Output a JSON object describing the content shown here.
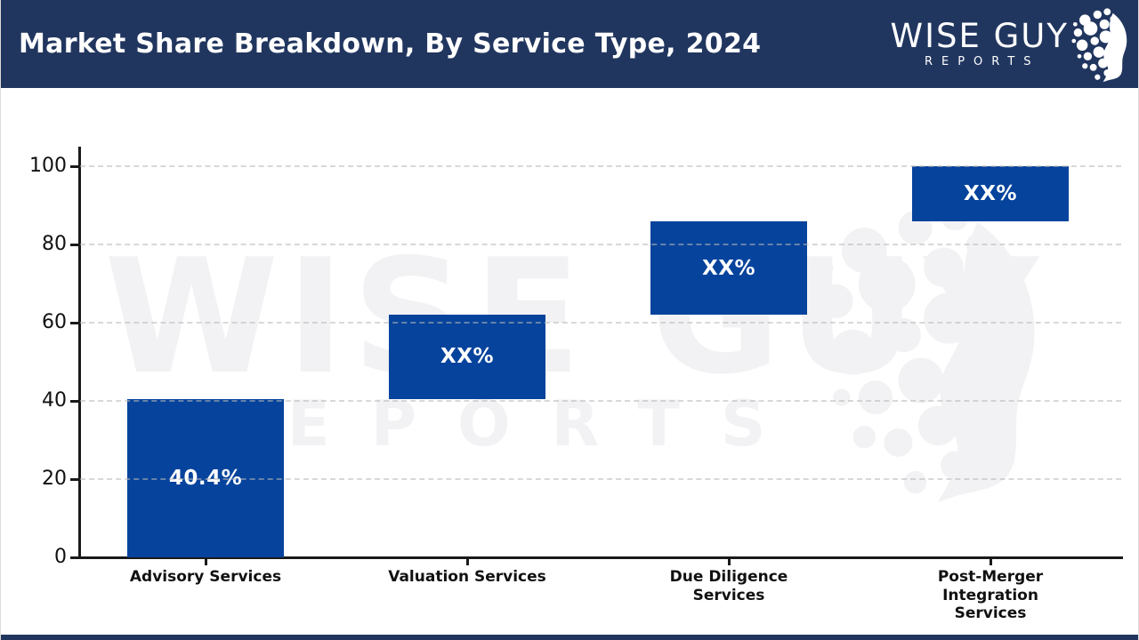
{
  "header": {
    "title": "Market Share Breakdown, By Service Type, 2024",
    "background_color": "#21365f",
    "logo": {
      "line1": "WISE GUY",
      "line2": "REPORTS"
    }
  },
  "watermark": {
    "line1": "WISE GUY",
    "line2": "REPORTS"
  },
  "colors": {
    "navy": "#21365f",
    "bar_blue": "#06439c",
    "watermark_gray": "#f2f2f4"
  },
  "chart_data": {
    "type": "bar",
    "subtype": "floating-waterfall",
    "title": "Market Share Breakdown, By Service Type, 2024",
    "categories": [
      "Advisory Services",
      "Valuation Services",
      "Due Diligence\nServices",
      "Post-Merger\nIntegration\nServices"
    ],
    "segments": [
      {
        "category": "Advisory Services",
        "start": 0,
        "end": 40.4,
        "label": "40.4%"
      },
      {
        "category": "Valuation Services",
        "start": 40.4,
        "end": 62.1,
        "label": "XX%"
      },
      {
        "category": "Due Diligence Services",
        "start": 62.1,
        "end": 85.8,
        "label": "XX%"
      },
      {
        "category": "Post-Merger Integration Services",
        "start": 85.8,
        "end": 100,
        "label": "XX%"
      }
    ],
    "y_ticks": [
      0,
      20,
      40,
      60,
      80,
      100
    ],
    "y_tick_labels": [
      "0",
      "20",
      "40",
      "60",
      "80",
      "100"
    ],
    "ylim": [
      0,
      105
    ],
    "xlabel": "",
    "ylabel": "",
    "grid": "horizontal-dashed",
    "legend": "none",
    "bar_color": "#06439c"
  }
}
